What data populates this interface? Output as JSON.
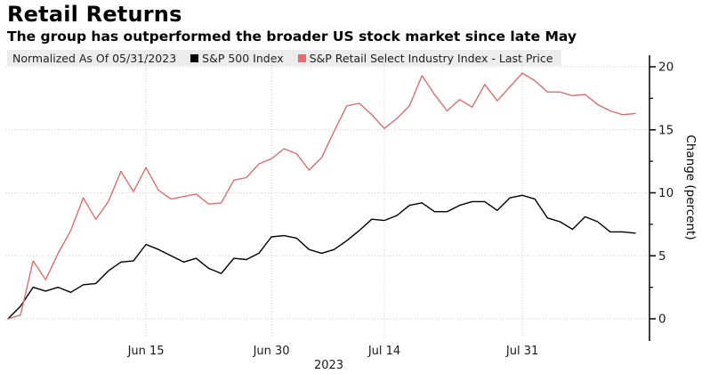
{
  "header": {
    "title": "Retail Returns",
    "subtitle": "The group has outperformed the broader US stock market since late May"
  },
  "legend": {
    "note": "Normalized As Of 05/31/2023",
    "series": [
      {
        "label": "S&P 500 Index",
        "color": "#000000"
      },
      {
        "label": "S&P Retail Select Industry Index - Last Price",
        "color": "#ef676b"
      }
    ]
  },
  "chart_data": {
    "type": "line",
    "title": "Retail Returns",
    "ylabel": "Change (percent)",
    "xaxis_year": "2023",
    "grid": "dotted",
    "legend_position": "top",
    "ylim": [
      -1,
      21
    ],
    "yticks": [
      0,
      5,
      10,
      15,
      20
    ],
    "yticks_minor": [
      2.5,
      7.5,
      12.5,
      17.5
    ],
    "xticks": [
      {
        "label": "Jun 15",
        "index": 11
      },
      {
        "label": "Jun 30",
        "index": 21
      },
      {
        "label": "Jul 14",
        "index": 30
      },
      {
        "label": "Jul 31",
        "index": 41
      }
    ],
    "x": [
      "May 31",
      "Jun 1",
      "Jun 2",
      "Jun 5",
      "Jun 6",
      "Jun 7",
      "Jun 8",
      "Jun 9",
      "Jun 12",
      "Jun 13",
      "Jun 14",
      "Jun 15",
      "Jun 16",
      "Jun 20",
      "Jun 21",
      "Jun 22",
      "Jun 23",
      "Jun 26",
      "Jun 27",
      "Jun 28",
      "Jun 29",
      "Jun 30",
      "Jul 3",
      "Jul 5",
      "Jul 6",
      "Jul 7",
      "Jul 10",
      "Jul 11",
      "Jul 12",
      "Jul 13",
      "Jul 14",
      "Jul 17",
      "Jul 18",
      "Jul 19",
      "Jul 20",
      "Jul 21",
      "Jul 24",
      "Jul 25",
      "Jul 26",
      "Jul 27",
      "Jul 28",
      "Jul 31",
      "Aug 1",
      "Aug 2",
      "Aug 3",
      "Aug 4",
      "Aug 7",
      "Aug 8",
      "Aug 9",
      "Aug 10",
      "Aug 11"
    ],
    "series": [
      {
        "name": "S&P 500 Index",
        "color": "#000000",
        "values": [
          0.0,
          1.0,
          2.5,
          2.2,
          2.5,
          2.1,
          2.7,
          2.8,
          3.8,
          4.5,
          4.6,
          5.9,
          5.5,
          5.0,
          4.5,
          4.8,
          4.0,
          3.6,
          4.8,
          4.7,
          5.2,
          6.5,
          6.6,
          6.4,
          5.5,
          5.2,
          5.5,
          6.2,
          7.0,
          7.9,
          7.8,
          8.2,
          9.0,
          9.2,
          8.5,
          8.5,
          9.0,
          9.3,
          9.3,
          8.6,
          9.6,
          9.8,
          9.5,
          8.0,
          7.7,
          7.1,
          8.1,
          7.7,
          6.9,
          6.9,
          6.8
        ]
      },
      {
        "name": "S&P Retail Select Industry Index - Last Price",
        "color": "#db6e6e",
        "values": [
          0.0,
          0.3,
          4.6,
          3.1,
          5.2,
          7.0,
          9.6,
          7.9,
          9.3,
          11.7,
          10.1,
          12.0,
          10.2,
          9.5,
          9.7,
          9.9,
          9.1,
          9.2,
          11.0,
          11.2,
          12.3,
          12.7,
          13.5,
          13.1,
          11.8,
          12.8,
          14.9,
          16.9,
          17.1,
          16.2,
          15.1,
          15.9,
          16.9,
          19.3,
          17.8,
          16.5,
          17.4,
          16.8,
          18.6,
          17.3,
          18.4,
          19.5,
          18.9,
          18.0,
          18.0,
          17.7,
          17.8,
          17.0,
          16.5,
          16.2,
          16.3
        ]
      }
    ]
  },
  "style": {
    "grid_color": "#cfcfcf",
    "axis_color": "#000000",
    "tick_label_color": "#1a1a1a",
    "legend_bg": "#ececec"
  }
}
